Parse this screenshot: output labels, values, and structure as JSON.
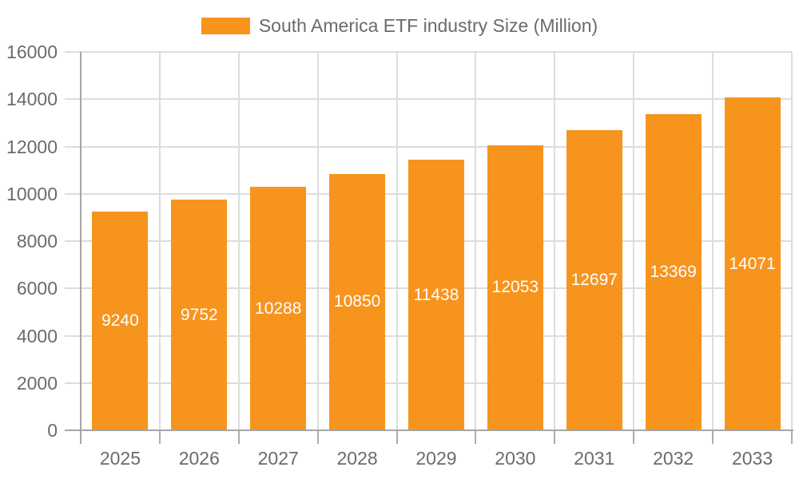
{
  "legend": {
    "label": "South America ETF industry Size (Million)"
  },
  "chart_data": {
    "type": "bar",
    "title": "South America ETF industry Size (Million)",
    "series_name": "South America ETF industry Size (Million)",
    "categories": [
      "2025",
      "2026",
      "2027",
      "2028",
      "2029",
      "2030",
      "2031",
      "2032",
      "2033"
    ],
    "values": [
      9240,
      9752,
      10288,
      10850,
      11438,
      12053,
      12697,
      13369,
      14071
    ],
    "bar_labels": [
      "9240",
      "9752",
      "10288",
      "10850",
      "11438",
      "12053",
      "12697",
      "13369",
      "14071"
    ],
    "xlabel": "",
    "ylabel": "",
    "ylim": [
      0,
      16000
    ],
    "y_ticks": [
      0,
      2000,
      4000,
      6000,
      8000,
      10000,
      12000,
      14000,
      16000
    ],
    "grid": true,
    "legend_position": "top-center",
    "colors": {
      "bar": "#F7941E",
      "bar_label": "#FFFFFF",
      "axis_text": "#6B6B6B",
      "gridline": "#DDDDDD",
      "tick": "#ADADAD",
      "axis_line": "#A5A5A5",
      "background": "#FFFFFF"
    }
  }
}
